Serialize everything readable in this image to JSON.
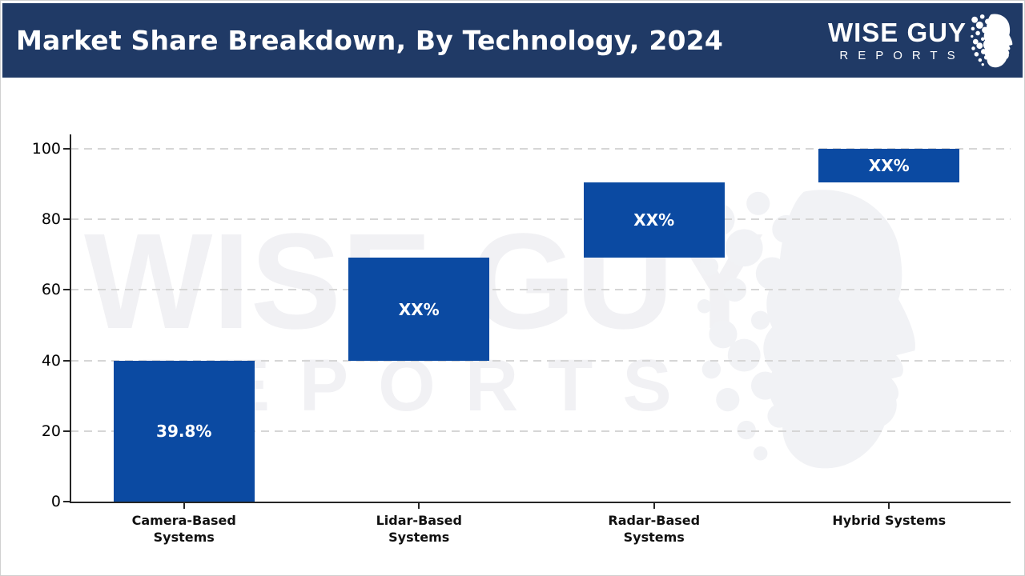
{
  "header": {
    "title": "Market Share Breakdown, By Technology, 2024",
    "bg_color": "#203a66",
    "logo_line1": "WISE GUY",
    "logo_line2": "REPORTS"
  },
  "watermark": {
    "line1": "WISE GUY",
    "line2": "REPORTS"
  },
  "chart_data": {
    "type": "bar",
    "variant": "floating-waterfall",
    "title": "Market Share Breakdown, By Technology, 2024",
    "categories": [
      "Camera-Based\nSystems",
      "Lidar-Based\nSystems",
      "Radar-Based\nSystems",
      "Hybrid Systems"
    ],
    "segments": [
      {
        "category": "Camera-Based Systems",
        "label": "39.8%",
        "start": 0,
        "end": 39.8
      },
      {
        "category": "Lidar-Based Systems",
        "label": "XX%",
        "start": 39.8,
        "end": 69.2
      },
      {
        "category": "Radar-Based Systems",
        "label": "XX%",
        "start": 69.2,
        "end": 90.4
      },
      {
        "category": "Hybrid Systems",
        "label": "XX%",
        "start": 90.4,
        "end": 100
      }
    ],
    "ylabel": "",
    "xlabel": "",
    "yticks": [
      0,
      20,
      40,
      60,
      80,
      100
    ],
    "ylim": [
      0,
      105
    ],
    "bar_color": "#0b4aa2",
    "grid": "dashed-horizontal",
    "gridline_color": "#d6d6d6",
    "axis_color": "#262626",
    "bar_label_color": "#ffffff",
    "legend": "none"
  }
}
